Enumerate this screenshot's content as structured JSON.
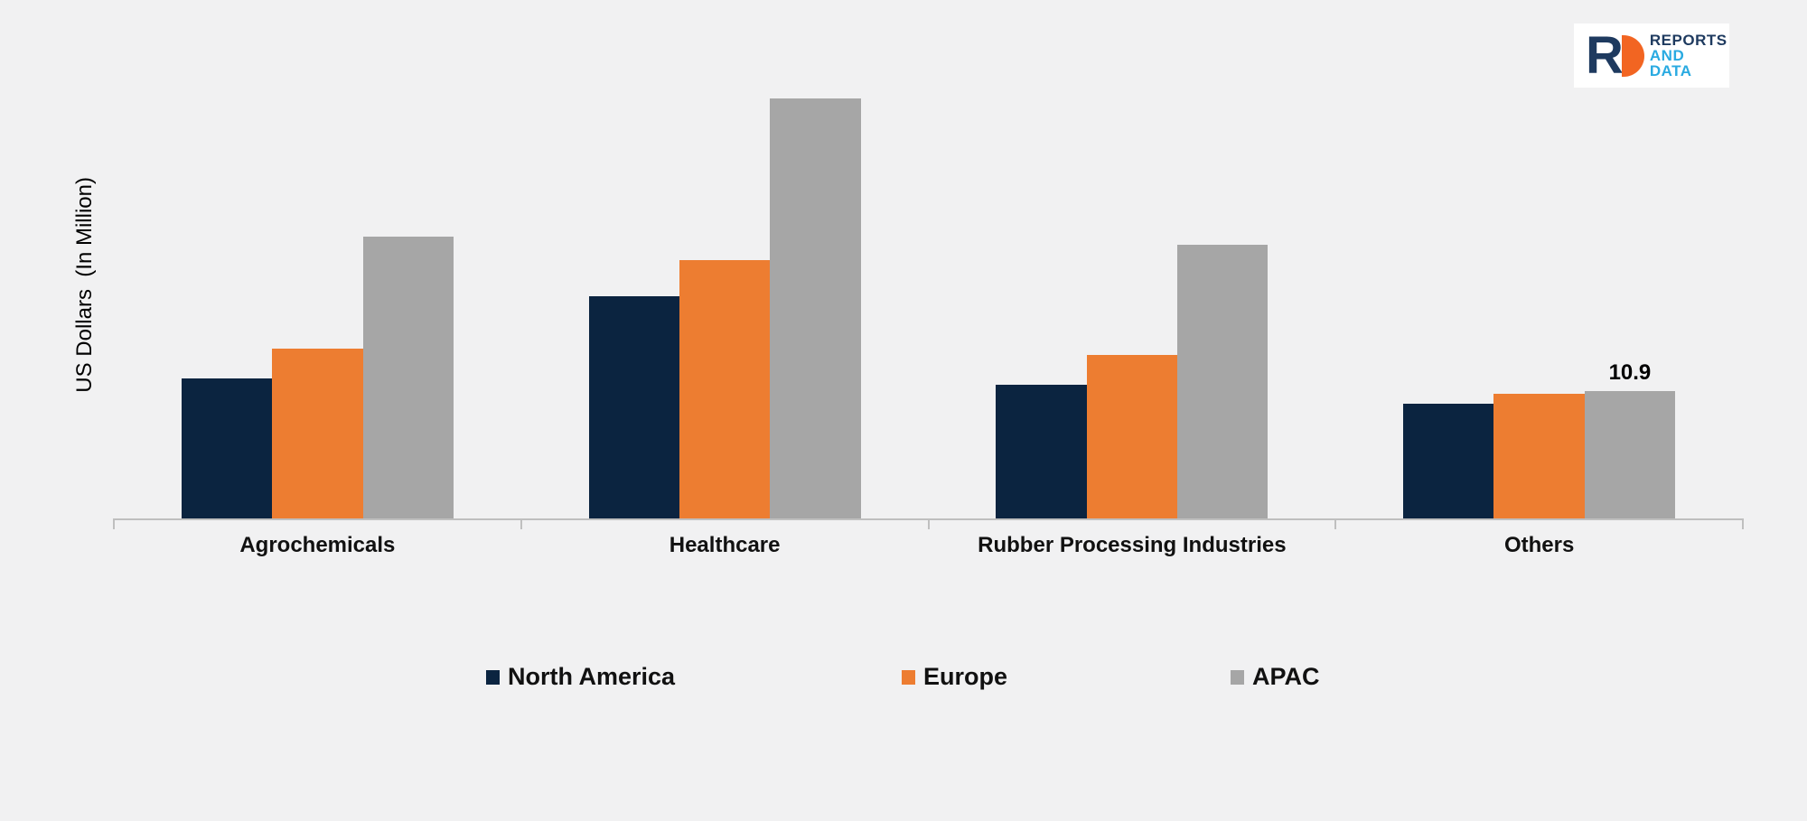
{
  "logo": {
    "monogram_r": "R",
    "line1": "REPORTS",
    "line2": "AND DATA",
    "navy": "#1e3a5f",
    "blue": "#29aae1",
    "orange": "#f26522"
  },
  "chart_data": {
    "type": "bar",
    "title": "",
    "xlabel": "",
    "ylabel": "US Dollars  (In Million)",
    "categories": [
      "Agrochemicals",
      "Healthcare",
      "Rubber Processing Industries",
      "Others"
    ],
    "series": [
      {
        "name": "North America",
        "color": "#0b2440",
        "values": [
          12.0,
          19.0,
          11.4,
          9.8
        ]
      },
      {
        "name": "Europe",
        "color": "#ed7d31",
        "values": [
          14.5,
          22.1,
          14.0,
          10.7
        ]
      },
      {
        "name": "APAC",
        "color": "#a6a6a6",
        "values": [
          24.1,
          35.9,
          23.4,
          10.9
        ]
      }
    ],
    "data_labels": [
      {
        "category": "Others",
        "series": "APAC",
        "text": "10.9"
      }
    ],
    "ylim": [
      0,
      40
    ],
    "y_axis_tick_labels_visible": false,
    "grid": false,
    "legend_position": "bottom",
    "axis_color": "#bfbfbf",
    "background_color": "#f1f1f2"
  }
}
